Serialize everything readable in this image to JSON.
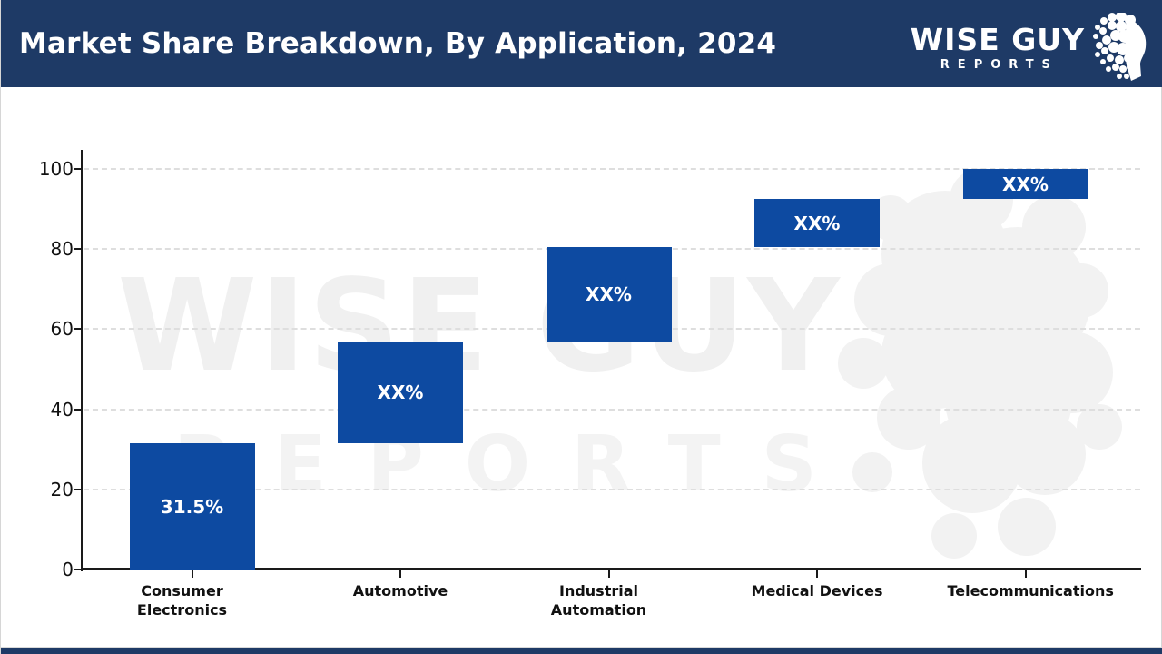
{
  "header": {
    "title": "Market Share Breakdown, By Application, 2024",
    "logo": {
      "line1": "WISE GUY",
      "line2": "REPORTS"
    }
  },
  "watermark": {
    "line1": "WISE GUY",
    "line2": "REPORTS"
  },
  "chart_data": {
    "type": "bar",
    "subtype": "waterfall",
    "title": "Market Share Breakdown, By Application, 2024",
    "categories": [
      "Consumer Electronics",
      "Automotive",
      "Industrial Automation",
      "Medical Devices",
      "Telecommunications"
    ],
    "bars": [
      {
        "category": "Consumer Electronics",
        "label": "31.5%",
        "start": 0,
        "end": 31.5
      },
      {
        "category": "Automotive",
        "label": "XX%",
        "start": 31.5,
        "end": 57
      },
      {
        "category": "Industrial Automation",
        "label": "XX%",
        "start": 57,
        "end": 80.5
      },
      {
        "category": "Medical Devices",
        "label": "XX%",
        "start": 80.5,
        "end": 92.5
      },
      {
        "category": "Telecommunications",
        "label": "XX%",
        "start": 92.5,
        "end": 100
      }
    ],
    "yticks": [
      0,
      20,
      40,
      60,
      80,
      100
    ],
    "ylim": [
      0,
      105
    ],
    "xlabel": "",
    "ylabel": "",
    "grid": "horizontal-dashed",
    "legend": "none",
    "colors": {
      "bar": "#0d4aa1",
      "header_band": "#1e3a66",
      "grid": "#dedede",
      "axis": "#1a1a1a",
      "bar_label": "#ffffff",
      "tick_label": "#111111"
    }
  }
}
